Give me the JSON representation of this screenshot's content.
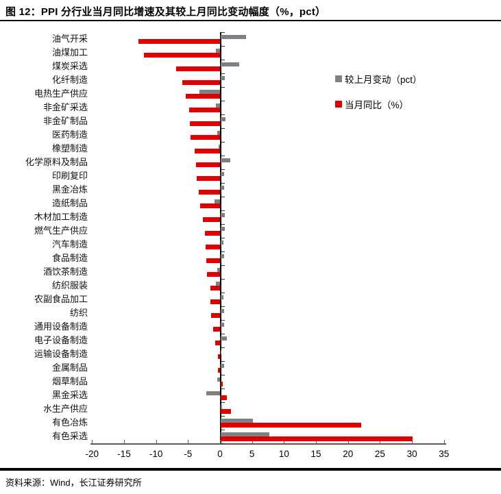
{
  "title": "图  12：PPI 分行业当月同比增速及其较上月同比变动幅度（%，pct）",
  "footer": {
    "source": "资料来源：Wind，长江证券研究所"
  },
  "legend": {
    "items": [
      {
        "label": "较上月变动（pct）",
        "color": "#808080"
      },
      {
        "label": "当月同比（%）",
        "color": "#E00000"
      }
    ]
  },
  "colors": {
    "prev_month_change": "#808080",
    "yoy": "#E00000",
    "axis": "#595959"
  },
  "chart_data": {
    "type": "bar",
    "orientation": "horizontal",
    "title": "PPI 分行业当月同比增速及其较上月同比变动幅度（%，pct）",
    "xlabel": "",
    "ylabel": "",
    "xlim": [
      -20,
      35
    ],
    "xticks": [
      -20,
      -15,
      -10,
      -5,
      0,
      5,
      10,
      15,
      20,
      25,
      30,
      35
    ],
    "grid": false,
    "legend_position": "upper-right-inside",
    "categories": [
      "油气开采",
      "油煤加工",
      "煤炭采选",
      "化纤制造",
      "电热生产供应",
      "非金矿采选",
      "非金矿制品",
      "医药制造",
      "橡塑制造",
      "化学原料及制品",
      "印刷复印",
      "黑金冶炼",
      "造纸制品",
      "木材加工制造",
      "燃气生产供应",
      "汽车制造",
      "食品制造",
      "酒饮茶制造",
      "纺织服装",
      "农副食品加工",
      "纺织",
      "通用设备制造",
      "电子设备制造",
      "运输设备制造",
      "金属制品",
      "烟草制品",
      "黑金采选",
      "水生产供应",
      "有色冶炼",
      "有色采选"
    ],
    "series": [
      {
        "name": "较上月变动（pct）",
        "color": "#808080",
        "values": [
          4.0,
          -0.6,
          2.9,
          0.6,
          -3.2,
          -0.6,
          0.7,
          -0.4,
          -0.2,
          1.5,
          0.5,
          0.5,
          -0.9,
          0.6,
          0.6,
          0.4,
          0.5,
          -0.4,
          -0.6,
          0.4,
          0.5,
          0.5,
          1.0,
          0.1,
          0.5,
          -0.4,
          -2.1,
          0.2,
          5.0,
          7.6
        ]
      },
      {
        "name": "当月同比（%）",
        "color": "#E00000",
        "values": [
          -12.7,
          -11.9,
          -6.9,
          -5.9,
          -5.4,
          -4.8,
          -4.7,
          -4.6,
          -4.0,
          -3.8,
          -3.6,
          -3.3,
          -3.1,
          -2.7,
          -2.4,
          -2.3,
          -2.1,
          -2.0,
          -1.5,
          -1.5,
          -1.4,
          -1.1,
          -0.8,
          -0.3,
          -0.3,
          0.3,
          1.0,
          1.6,
          22.0,
          30.0
        ]
      }
    ]
  }
}
